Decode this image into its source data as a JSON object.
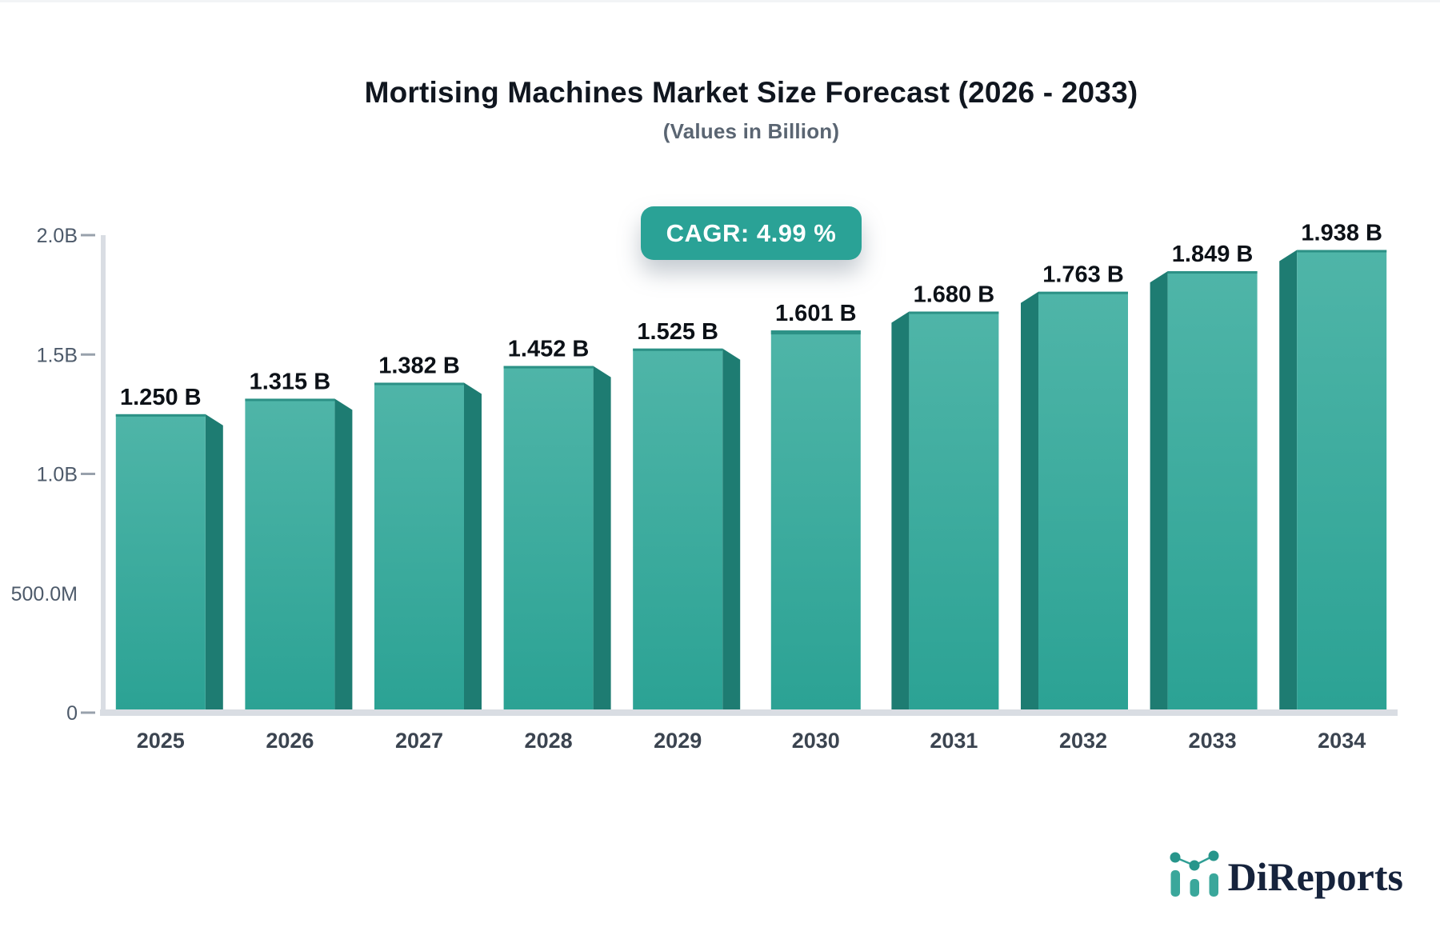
{
  "chart": {
    "title": "Mortising Machines Market Size Forecast (2026 - 2033)",
    "subtitle": "(Values in Billion)",
    "cagr_label": "CAGR: 4.99 %"
  },
  "chart_data": {
    "type": "bar",
    "title": "Mortising Machines Market Size Forecast (2026 - 2033)",
    "subtitle": "(Values in Billion)",
    "annotation": "CAGR: 4.99 %",
    "categories": [
      "2025",
      "2026",
      "2027",
      "2028",
      "2029",
      "2030",
      "2031",
      "2032",
      "2033",
      "2034"
    ],
    "values": [
      1.25,
      1.315,
      1.382,
      1.452,
      1.525,
      1.601,
      1.68,
      1.763,
      1.849,
      1.938
    ],
    "value_labels": [
      "1.250 B",
      "1.315 B",
      "1.382 B",
      "1.452 B",
      "1.525 B",
      "1.601 B",
      "1.680 B",
      "1.763 B",
      "1.849 B",
      "1.938 B"
    ],
    "unit": "Billion",
    "xlabel": "",
    "ylabel": "",
    "ylim": [
      0,
      2.0
    ],
    "grid": false,
    "legend": "none",
    "y_ticks": [
      {
        "value": 0.0,
        "label": "0",
        "dash": true
      },
      {
        "value": 0.5,
        "label": "500.0M",
        "dash": false
      },
      {
        "value": 1.0,
        "label": "1.0B",
        "dash": true
      },
      {
        "value": 1.5,
        "label": "1.5B",
        "dash": true
      },
      {
        "value": 2.0,
        "label": "2.0B",
        "dash": true
      }
    ],
    "colors": {
      "bar_gradient_top": "#4fb5a8",
      "bar_gradient_bottom": "#2ba294",
      "bar_side": "#1e7c72",
      "bar_top_edge": "#2c9186",
      "axis_line": "#d9dde3",
      "tick_dash": "#98a1ac",
      "tick_label": "#4d5a6a",
      "year_label": "#3b4450",
      "value_label": "#0c1117",
      "accent": "#2aa296"
    }
  },
  "footer": {
    "logo_text": "DiReports"
  }
}
